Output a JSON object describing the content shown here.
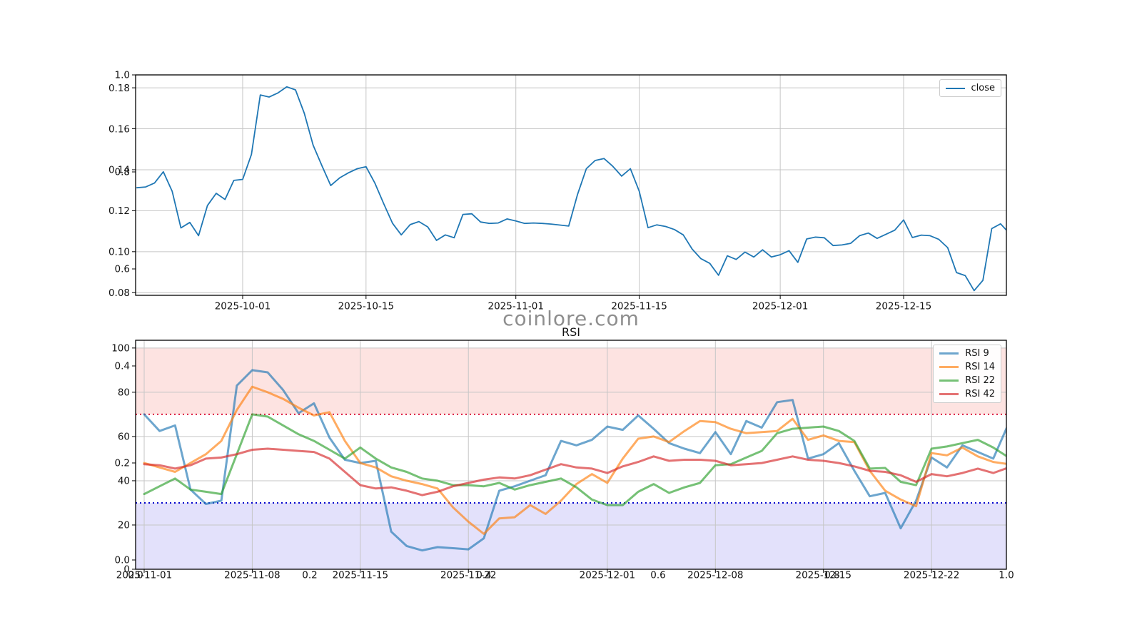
{
  "watermark": "coinlore.com",
  "colors": {
    "close": "#1f77b4",
    "rsi9": "rgba(31,119,180,0.65)",
    "rsi14": "rgba(255,127,14,0.65)",
    "rsi22": "rgba(44,160,44,0.65)",
    "rsi42": "rgba(214,39,40,0.65)",
    "overbought_band": "#fde3e1",
    "oversold_band": "#e3e1fb",
    "overbought_line": "#dc143c",
    "oversold_line": "#0000cc",
    "grid": "#c6c6c6",
    "spine": "#000000"
  },
  "phantom_axis": {
    "y_labels": [
      "1.0",
      "0.8",
      "0.6",
      "0.4",
      "0.2",
      "0.0"
    ],
    "x_labels": [
      "0.0",
      "0.2",
      "0.4",
      "0.6",
      "0.8",
      "1.0"
    ]
  },
  "chart_data": [
    {
      "type": "line",
      "title": "",
      "legend_position": "upper right",
      "grid": true,
      "x_tick_labels": [
        "2025-10-01",
        "2025-10-15",
        "2025-11-01",
        "2025-11-15",
        "2025-12-01",
        "2025-12-15"
      ],
      "x_tick_indices": [
        12,
        26,
        43,
        57,
        73,
        87
      ],
      "x_start_date": "2025-09-19",
      "y_tick_labels": [
        "0.18",
        "0.16",
        "0.14",
        "0.12",
        "0.10",
        "0.08"
      ],
      "y_tick_values": [
        0.18,
        0.16,
        0.14,
        0.12,
        0.1,
        0.08
      ],
      "ylim": [
        0.0787,
        0.1863
      ],
      "series": [
        {
          "name": "close",
          "color_key": "close",
          "width": 1.8,
          "values": [
            0.1312,
            0.1316,
            0.1335,
            0.139,
            0.1295,
            0.1116,
            0.1143,
            0.1078,
            0.1225,
            0.1285,
            0.1255,
            0.1348,
            0.1353,
            0.1475,
            0.1765,
            0.1755,
            0.1775,
            0.1805,
            0.179,
            0.1675,
            0.152,
            0.1419,
            0.1323,
            0.136,
            0.1385,
            0.1405,
            0.1415,
            0.1335,
            0.1235,
            0.1139,
            0.1082,
            0.1132,
            0.1147,
            0.1121,
            0.1055,
            0.1082,
            0.1068,
            0.1182,
            0.1185,
            0.1145,
            0.1138,
            0.114,
            0.116,
            0.115,
            0.1138,
            0.114,
            0.1138,
            0.1135,
            0.113,
            0.1125,
            0.128,
            0.1405,
            0.1445,
            0.1455,
            0.1417,
            0.1369,
            0.1405,
            0.1295,
            0.1117,
            0.1131,
            0.1123,
            0.1108,
            0.1082,
            0.1013,
            0.0966,
            0.0943,
            0.0885,
            0.098,
            0.0962,
            0.0998,
            0.0974,
            0.1009,
            0.0974,
            0.0985,
            0.1005,
            0.0948,
            0.1062,
            0.1071,
            0.1068,
            0.103,
            0.1033,
            0.1041,
            0.1078,
            0.1091,
            0.1065,
            0.1085,
            0.1105,
            0.1155,
            0.1069,
            0.1081,
            0.1078,
            0.106,
            0.102,
            0.0898,
            0.0883,
            0.081,
            0.086,
            0.1113,
            0.1136,
            0.109
          ]
        }
      ]
    },
    {
      "type": "line",
      "title": "RSI",
      "legend_position": "upper right",
      "grid": true,
      "x_tick_labels": [
        "2025-11-01",
        "2025-11-08",
        "2025-11-15",
        "2025-11-22",
        "2025-12-01",
        "2025-12-08",
        "2025-12-15",
        "2025-12-22"
      ],
      "x_tick_indices": [
        0,
        7,
        14,
        21,
        30,
        37,
        44,
        51
      ],
      "x_start_date": "2025-11-01",
      "y_tick_labels": [
        "100",
        "80",
        "60",
        "40",
        "20",
        "0"
      ],
      "y_tick_values": [
        100,
        80,
        60,
        40,
        20,
        0
      ],
      "ylim": [
        0,
        103.5
      ],
      "bands": [
        {
          "name": "overbought-band",
          "from": 70,
          "to": 100,
          "color_key": "overbought_band"
        },
        {
          "name": "oversold-band",
          "from": 0,
          "to": 30,
          "color_key": "oversold_band"
        }
      ],
      "threshold_lines": [
        {
          "name": "overbought-threshold",
          "value": 70,
          "color_key": "overbought_line"
        },
        {
          "name": "oversold-threshold",
          "value": 30,
          "color_key": "oversold_line"
        }
      ],
      "series": [
        {
          "name": "RSI 9",
          "color_key": "rsi9",
          "width": 3,
          "values": [
            70,
            62.5,
            65,
            36,
            29.5,
            31,
            83,
            90,
            89,
            81,
            70.5,
            75,
            59.5,
            49.5,
            48,
            49,
            17,
            10.5,
            8.5,
            10,
            9.5,
            9,
            14,
            35.5,
            37.5,
            40,
            42.5,
            58,
            56,
            58.5,
            64.5,
            63,
            69.5,
            63.5,
            57,
            54.5,
            52.5,
            62,
            52,
            67,
            64,
            75.5,
            76.5,
            50,
            52,
            57,
            44.5,
            33,
            34.5,
            18.5,
            31,
            50.5,
            46,
            56,
            53,
            50,
            66
          ]
        },
        {
          "name": "RSI 14",
          "color_key": "rsi14",
          "width": 3,
          "values": [
            48,
            46,
            44,
            48,
            52,
            58,
            72,
            82.5,
            80,
            77,
            73,
            69.5,
            71,
            58,
            48,
            46,
            42,
            40,
            38.5,
            36.5,
            28,
            21.5,
            16,
            23,
            23.5,
            29,
            25,
            31,
            38.5,
            43,
            39,
            50,
            59,
            60,
            57.5,
            62.5,
            67,
            66.5,
            63.5,
            61.5,
            62,
            62.5,
            68,
            58.5,
            60.5,
            58,
            57.5,
            44.5,
            35.5,
            31.5,
            28.5,
            52.5,
            51.5,
            55,
            51,
            48.5,
            47.5
          ]
        },
        {
          "name": "RSI 22",
          "color_key": "rsi22",
          "width": 3,
          "values": [
            34,
            37.5,
            41,
            36,
            35,
            34,
            52,
            70,
            69,
            65,
            61,
            58,
            54,
            50,
            55,
            50,
            46,
            44,
            41,
            40,
            38,
            38,
            37.5,
            39,
            36,
            38,
            39.5,
            41,
            37,
            31.5,
            29,
            29,
            35,
            38.5,
            34.5,
            37,
            39,
            47,
            47.5,
            50.5,
            53.5,
            61.5,
            63.5,
            64,
            64.5,
            62.5,
            58,
            45.5,
            45.8,
            39.5,
            38,
            54.5,
            55.5,
            57,
            58.5,
            55,
            50.5
          ]
        },
        {
          "name": "RSI 42",
          "color_key": "rsi42",
          "width": 3,
          "values": [
            47.5,
            47,
            45.5,
            47,
            50,
            50.5,
            52,
            54,
            54.5,
            54,
            53.5,
            53,
            50,
            44,
            38,
            36.5,
            37,
            35.5,
            33.5,
            35,
            37.5,
            39,
            40.5,
            41.5,
            41,
            42.5,
            45,
            47.5,
            46,
            45.5,
            43.5,
            46.5,
            48.5,
            51,
            49,
            49.5,
            49.5,
            49,
            47,
            47.5,
            48,
            49.5,
            51,
            49.5,
            49,
            48,
            46.5,
            44.5,
            44,
            42.5,
            39.5,
            43,
            42,
            43.5,
            45.5,
            43.5,
            46
          ]
        }
      ]
    }
  ]
}
